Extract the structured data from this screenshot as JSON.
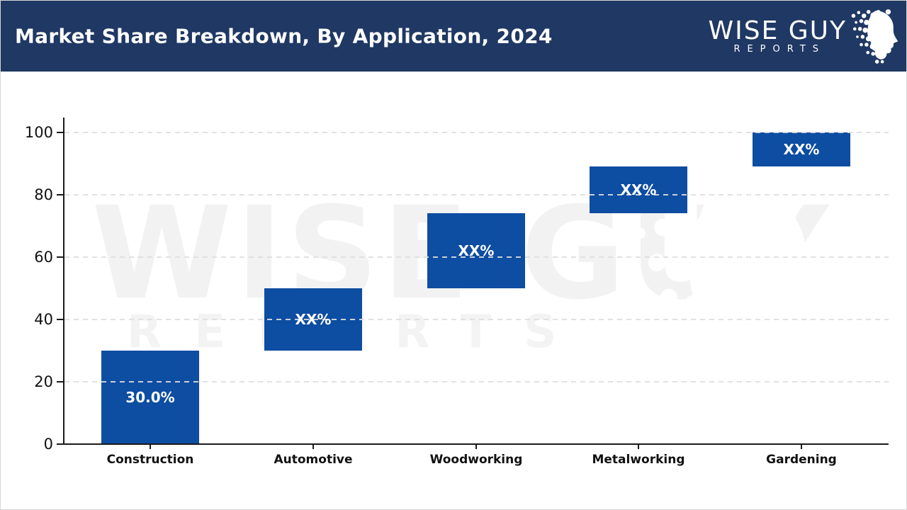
{
  "header": {
    "title": "Market Share Breakdown, By Application, 2024",
    "bg_color": "#1f3864",
    "logo": {
      "line1": "WISE GUY",
      "line2": "REPORTS"
    }
  },
  "watermark": {
    "line1": "WISE GUY",
    "line2": "REPORTS"
  },
  "chart_data": {
    "type": "bar",
    "subtype": "waterfall",
    "title": "Market Share Breakdown, By Application, 2024",
    "categories": [
      "Construction",
      "Automotive",
      "Woodworking",
      "Metalworking",
      "Gardening"
    ],
    "series": [
      {
        "name": "Market Share (%)",
        "starts": [
          0,
          30,
          50,
          74,
          89
        ],
        "ends": [
          30,
          50,
          74,
          89,
          100
        ]
      }
    ],
    "bar_labels": [
      "30.0%",
      "XX%",
      "XX%",
      "XX%",
      "XX%"
    ],
    "xlabel": "",
    "ylabel": "",
    "yticks": [
      0,
      20,
      40,
      60,
      80,
      100
    ],
    "ylim": [
      0,
      105
    ],
    "grid": "horizontal-dashed",
    "legend": "none",
    "bar_color": "#0d4da2",
    "bar_label_color": "#ffffff"
  }
}
